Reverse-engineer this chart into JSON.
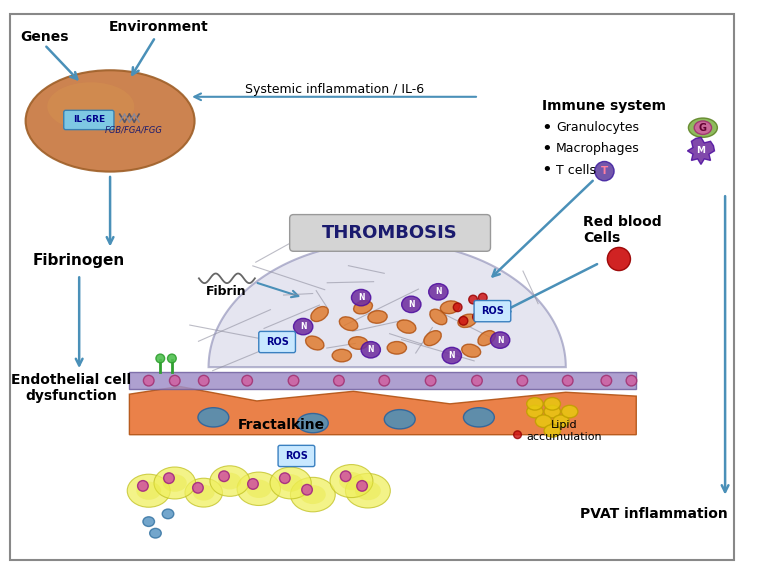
{
  "bg_color": "#ffffff",
  "border_color": "#888888",
  "liver_color": "#c87941",
  "liver_shadow": "#a0612a",
  "arrow_color": "#4a90b8",
  "thrombosis_text": "THROMBOSIS",
  "labels": {
    "genes": "Genes",
    "environment": "Environment",
    "il6re": "IL-6RE",
    "fgb": "FGB/FGA/FGG",
    "fibrinogen": "Fibrinogen",
    "systemic": "Systemic inflammation / IL-6",
    "immune_system": "Immune system",
    "granulocytes": "Granulocytes",
    "macrophages": "Macrophages",
    "tcells": "T cells",
    "red_blood": "Red blood\nCells",
    "endothelial": "Endothelial cell\ndysfunction",
    "fibrin": "Fibrin",
    "fractalkine": "Fractalkine",
    "lipid": "Lipid\naccumulation",
    "ros": "ROS",
    "pvat": "PVAT inflammation"
  }
}
